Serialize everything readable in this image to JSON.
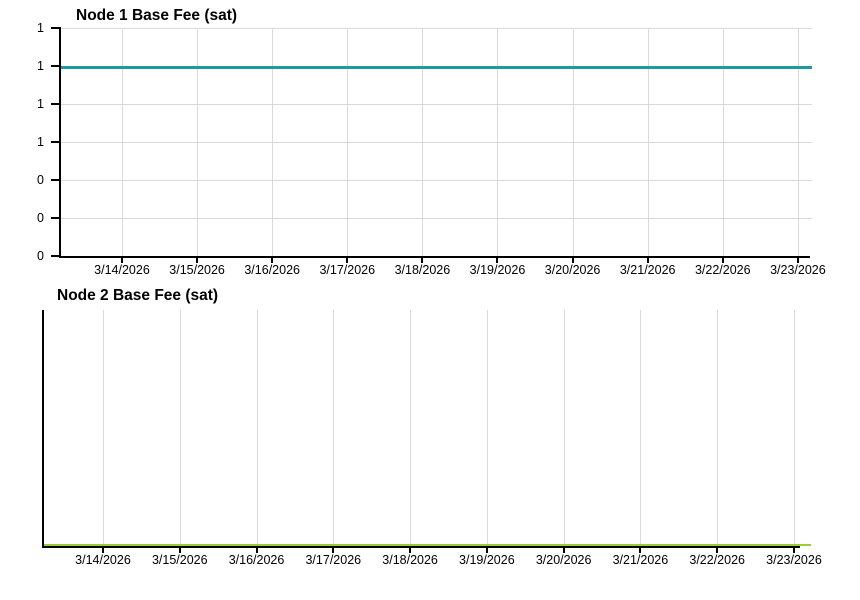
{
  "chart_data": [
    {
      "type": "line",
      "title": "Node 1 Base Fee (sat)",
      "x": [
        "3/14/2026",
        "3/15/2026",
        "3/16/2026",
        "3/17/2026",
        "3/18/2026",
        "3/19/2026",
        "3/20/2026",
        "3/21/2026",
        "3/22/2026",
        "3/23/2026"
      ],
      "series": [
        {
          "name": "Node 1 Base Fee",
          "color": "#1f99a0",
          "values": [
            1,
            1,
            1,
            1,
            1,
            1,
            1,
            1,
            1,
            1
          ]
        }
      ],
      "ylim": [
        0,
        1.2
      ],
      "y_tick_labels": [
        "1",
        "1",
        "1",
        "1",
        "0",
        "0",
        "0"
      ],
      "xlabel": "",
      "ylabel": "",
      "grid": {
        "horizontal": true,
        "vertical": true
      },
      "legend": "none"
    },
    {
      "type": "line",
      "title": "Node 2 Base Fee (sat)",
      "x": [
        "3/14/2026",
        "3/15/2026",
        "3/16/2026",
        "3/17/2026",
        "3/18/2026",
        "3/19/2026",
        "3/20/2026",
        "3/21/2026",
        "3/22/2026",
        "3/23/2026"
      ],
      "series": [
        {
          "name": "Node 2 Base Fee",
          "color": "#9acd32",
          "values": [
            0,
            0,
            0,
            0,
            0,
            0,
            0,
            0,
            0,
            0
          ]
        }
      ],
      "ylim": [
        0,
        1
      ],
      "y_tick_labels": [],
      "xlabel": "",
      "ylabel": "",
      "grid": {
        "horizontal": false,
        "vertical": true
      },
      "legend": "none"
    }
  ],
  "colors": {
    "axis": "#000000",
    "gridline": "#d9d9d9",
    "background": "#ffffff",
    "node1_line": "#1f99a0",
    "node2_line": "#9acd32"
  }
}
